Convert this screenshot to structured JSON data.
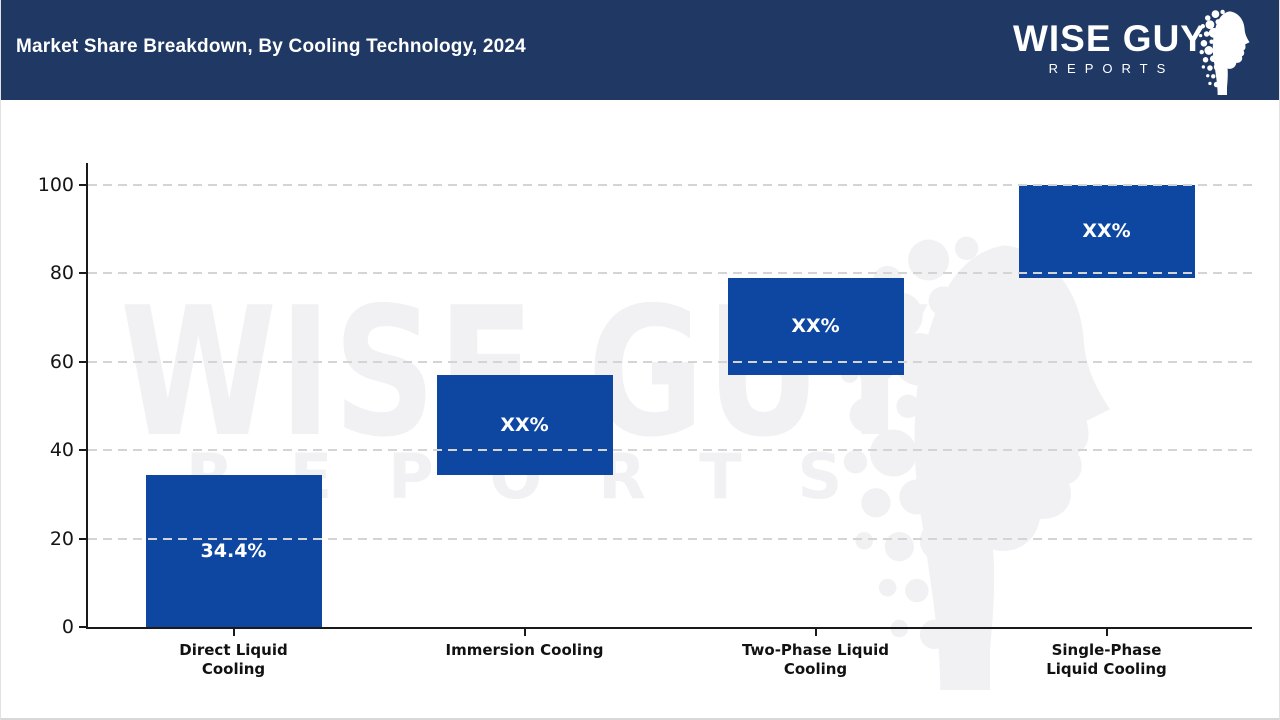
{
  "header": {
    "title": "Market Share Breakdown, By Cooling Technology, 2024",
    "logo": {
      "title": "WISE GUY",
      "subtitle": "REPORTS"
    }
  },
  "watermark": {
    "line1": "WISE GUY",
    "line2": "REPORTS"
  },
  "colors": {
    "header_bg": "#1f3864",
    "bar": "#0d47a1",
    "bar_label": "#ffffff",
    "grid": "#d4d4d4",
    "watermark": "#f1f1f3"
  },
  "chart_data": {
    "type": "bar",
    "subtype": "waterfall (cumulative market-share breakdown)",
    "title": "Market Share Breakdown, By Cooling Technology, 2024",
    "xlabel": "",
    "ylabel": "",
    "ylim": [
      0,
      105
    ],
    "yticks": [
      0,
      20,
      40,
      60,
      80,
      100
    ],
    "grid": "horizontal dashed, drawn above bars",
    "legend": "none",
    "categories": [
      "Direct Liquid Cooling",
      "Immersion Cooling",
      "Two-Phase Liquid Cooling",
      "Single-Phase Liquid Cooling"
    ],
    "category_lines": [
      [
        "Direct Liquid",
        "Cooling"
      ],
      [
        "Immersion Cooling"
      ],
      [
        "Two-Phase Liquid",
        "Cooling"
      ],
      [
        "Single-Phase",
        "Liquid Cooling"
      ]
    ],
    "segments": [
      {
        "category": "Direct Liquid Cooling",
        "start": 0,
        "end": 34.4,
        "value": 34.4,
        "label": "34.4%"
      },
      {
        "category": "Immersion Cooling",
        "start": 34.4,
        "end": 57.0,
        "value": 22.6,
        "label": "XX%"
      },
      {
        "category": "Two-Phase Liquid Cooling",
        "start": 57.0,
        "end": 79.0,
        "value": 22.0,
        "label": "XX%"
      },
      {
        "category": "Single-Phase Liquid Cooling",
        "start": 79.0,
        "end": 100.0,
        "value": 21.0,
        "label": "XX%"
      }
    ]
  }
}
